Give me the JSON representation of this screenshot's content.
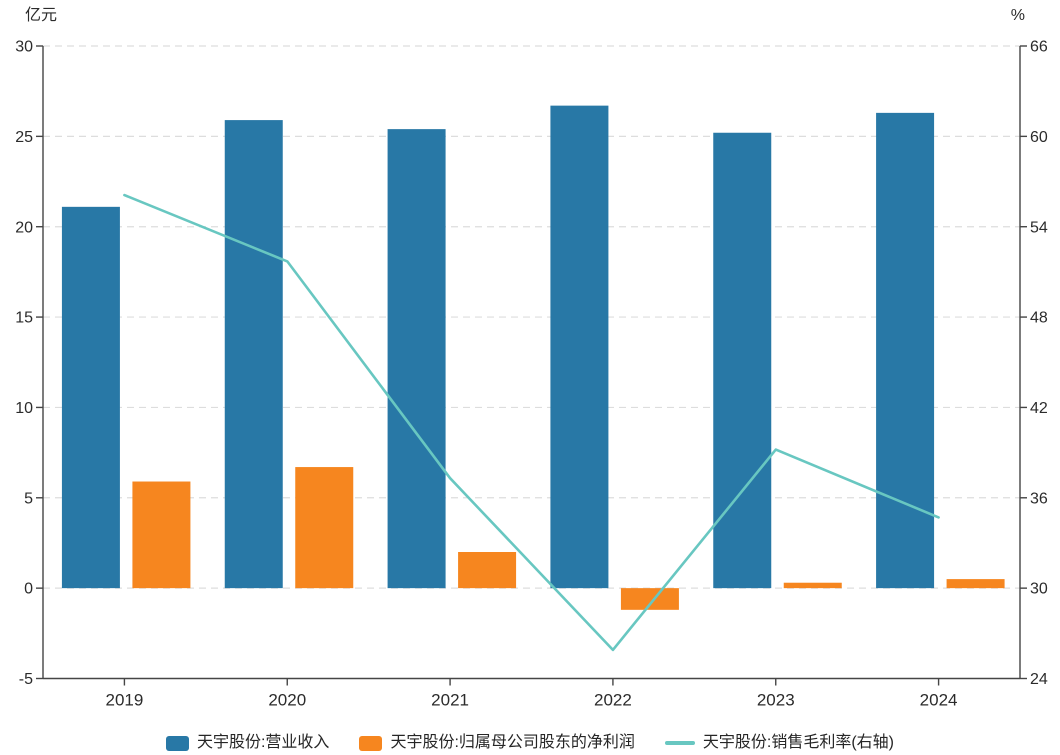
{
  "chart_data": {
    "type": "bar+line",
    "categories": [
      "2019",
      "2020",
      "2021",
      "2022",
      "2023",
      "2024"
    ],
    "series": [
      {
        "name": "天宇股份:营业收入",
        "type": "bar",
        "axis": "left",
        "color": "#2878A6",
        "values": [
          21.1,
          25.9,
          25.4,
          26.7,
          25.2,
          26.3
        ]
      },
      {
        "name": "天宇股份:归属母公司股东的净利润",
        "type": "bar",
        "axis": "left",
        "color": "#F6861F",
        "values": [
          5.9,
          6.7,
          2.0,
          -1.2,
          0.3,
          0.5
        ]
      },
      {
        "name": "天宇股份:销售毛利率(右轴)",
        "type": "line",
        "axis": "right",
        "color": "#68C7C1",
        "values": [
          56.1,
          51.7,
          37.3,
          25.9,
          39.2,
          34.7
        ]
      }
    ],
    "left_axis": {
      "label": "亿元",
      "min": -5,
      "max": 30,
      "ticks": [
        -5,
        0,
        5,
        10,
        15,
        20,
        25,
        30
      ]
    },
    "right_axis": {
      "label": "%",
      "min": 24,
      "max": 66,
      "ticks": [
        24,
        30,
        36,
        42,
        48,
        54,
        60,
        66
      ]
    },
    "grid": "horizontal-dashed",
    "legend_position": "bottom"
  },
  "colors": {
    "grid_line": "#DDDDDD",
    "axis_line": "#454545",
    "tick_text": "#2b2b2b",
    "background": "#ffffff"
  }
}
